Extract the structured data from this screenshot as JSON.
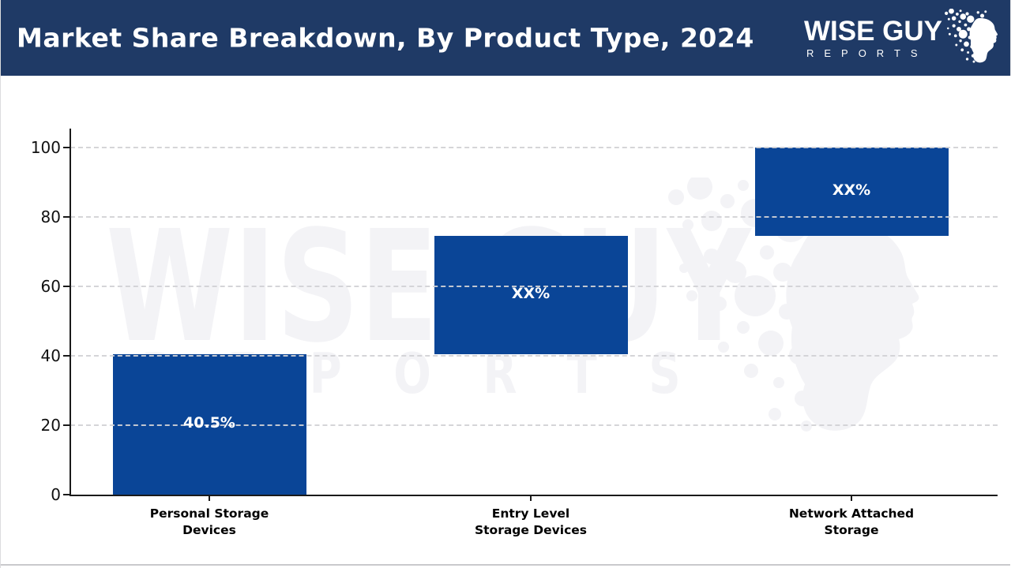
{
  "header": {
    "title": "Market Share Breakdown, By Product Type, 2024",
    "logo": {
      "name": "WISE GUY",
      "subtitle": "REPORTS"
    }
  },
  "watermark": {
    "line1": "WISE GUY",
    "line2": "REPORTS"
  },
  "chart_data": {
    "type": "bar",
    "subtype": "floating-segment-waterfall",
    "title": "Market Share Breakdown, By Product Type, 2024",
    "unit": "%",
    "categories": [
      [
        "Personal Storage",
        "Devices"
      ],
      [
        "Entry Level",
        "Storage Devices"
      ],
      [
        "Network Attached",
        "Storage"
      ]
    ],
    "bars": [
      {
        "category": "Personal Storage Devices",
        "start": 0,
        "end": 40.5,
        "label": "40.5%"
      },
      {
        "category": "Entry Level Storage Devices",
        "start": 40.5,
        "end": 74.5,
        "label": "XX%"
      },
      {
        "category": "Network Attached Storage",
        "start": 74.5,
        "end": 100,
        "label": "XX%"
      }
    ],
    "xlabel": "",
    "ylabel": "",
    "ylim": [
      0,
      105
    ],
    "yticks": [
      0,
      20,
      40,
      60,
      80,
      100
    ],
    "grid": "horizontal dashed",
    "legend": "none",
    "bar_color": "#0A4597",
    "bar_label_color": "#FFFFFF",
    "colors": {
      "header_bg": "#1F3A66",
      "axis": "#1A1A1A",
      "gridline": "#D1D1D5",
      "watermark": "#F3F3F6"
    }
  }
}
